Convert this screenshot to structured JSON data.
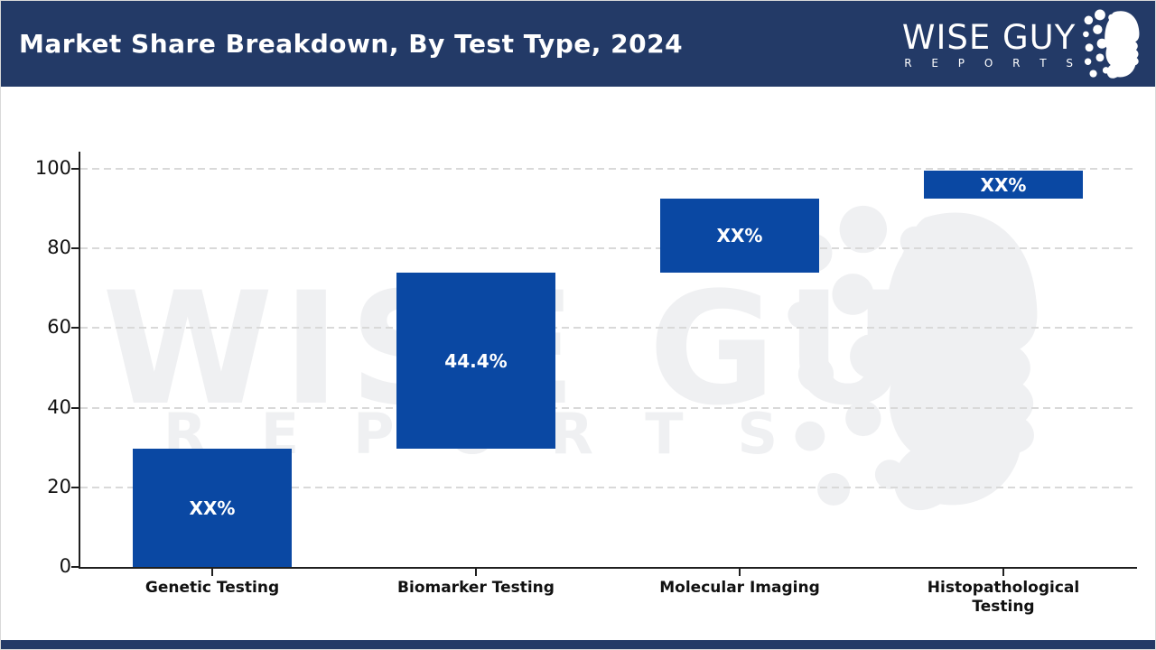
{
  "header": {
    "title": "Market Share Breakdown, By Test Type, 2024",
    "logo": {
      "wordmark": "WISE GUY",
      "subtitle": "R E P O R T S"
    }
  },
  "watermark": {
    "wordmark": "WISE GUY",
    "subtitle": "REPORTS"
  },
  "chart_data": {
    "type": "bar",
    "subtype": "waterfall-floating-bars",
    "title": "Market Share Breakdown, By Test Type, 2024",
    "categories": [
      "Genetic Testing",
      "Biomarker Testing",
      "Molecular Imaging",
      "Histopathological Testing"
    ],
    "segments": [
      {
        "category": "Genetic Testing",
        "start": 0,
        "end": 29.6,
        "label": "XX%"
      },
      {
        "category": "Biomarker Testing",
        "start": 29.6,
        "end": 74.0,
        "label": "44.4%"
      },
      {
        "category": "Molecular Imaging",
        "start": 74.0,
        "end": 92.5,
        "label": "XX%"
      },
      {
        "category": "Histopathological Testing",
        "start": 92.5,
        "end": 99.5,
        "label": "XX%"
      }
    ],
    "xlabel": "",
    "ylabel": "",
    "ylim": [
      0,
      100
    ],
    "yticks": [
      0,
      20,
      40,
      60,
      80,
      100
    ],
    "grid": "horizontal-dashed",
    "legend": null,
    "bar_color": "#0A48A3"
  },
  "colors": {
    "header_bg": "#233A67",
    "footer_bg": "#233A67",
    "bar": "#0A48A3",
    "axis": "#1F1F1F",
    "gridline": "#D9D9D9",
    "watermark": "#EFF0F2",
    "title_text": "#FFFFFF",
    "tick_text": "#111111"
  }
}
